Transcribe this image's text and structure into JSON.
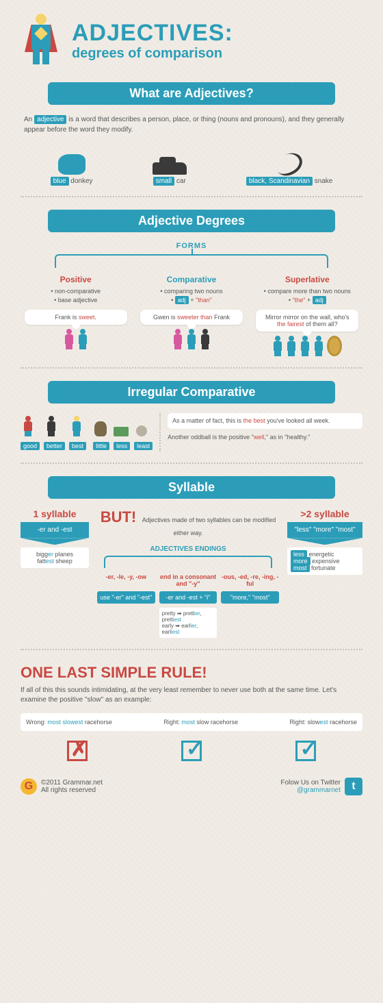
{
  "colors": {
    "teal": "#2b9db8",
    "red": "#c94842",
    "yellow": "#f5d56b",
    "bg": "#f0ece5",
    "text": "#555",
    "dark": "#3a3a3a",
    "pink": "#d858a0"
  },
  "header": {
    "title": "ADJECTIVES:",
    "subtitle": "degrees of comparison"
  },
  "s1": {
    "pill": "What are Adjectives?",
    "intro_a": "An ",
    "intro_hl": "adjective",
    "intro_b": " is a word that describes a person, place, or thing (nouns and pronouns), and they generally appear before the word they modify.",
    "ex1_hl": "blue",
    "ex1": "donkey",
    "ex2_hl": "small",
    "ex2": "car",
    "ex3_hl": "black, Scandinavian",
    "ex3": "snake"
  },
  "s2": {
    "pill": "Adjective Degrees",
    "forms": "FORMS",
    "pos": {
      "title": "Positive",
      "b1": "non-comparative",
      "b2": "base adjective",
      "bubble_a": "Frank is ",
      "bubble_b": "sweet",
      "bubble_c": "."
    },
    "comp": {
      "title": "Comparative",
      "b1": "comparing two nouns",
      "b2_a": "adj",
      "b2_b": " + ",
      "b2_c": "\"than\"",
      "bubble_a": "Gwen is ",
      "bubble_b": "sweeter than",
      "bubble_c": " Frank"
    },
    "sup": {
      "title": "Superlative",
      "b1": "compare more than two nouns",
      "b2_a": "\"the\"",
      "b2_b": " + ",
      "b2_c": "adj",
      "bubble_a": "Mirror mirror on the wall, who's ",
      "bubble_b": "the fairest",
      "bubble_c": " of them all?"
    }
  },
  "s3": {
    "pill": "Irregular Comparative",
    "g1": [
      "good",
      "better",
      "best"
    ],
    "g2": [
      "little",
      "less",
      "least"
    ],
    "note_bubble_a": "As a matter of fact, this is ",
    "note_bubble_b": "the best",
    "note_bubble_c": " you've looked all week.",
    "note2_a": "Another oddball is the positive \"",
    "note2_b": "well",
    "note2_c": ",\" as in \"healthy.\""
  },
  "s4": {
    "pill": "Syllable",
    "c1": {
      "title": "1 syllable",
      "arrow": "-er and -est",
      "ex_a": "bigg",
      "ex_b": "er",
      "ex_c": " planes",
      "ex_d": "fatt",
      "ex_e": "est",
      "ex_f": " sheep"
    },
    "mid": {
      "but": "BUT!",
      "but_text": "Adjectives made of two syllables can be modified either way.",
      "endings": "ADJECTIVES ENDINGS",
      "e1": {
        "head": "-er, -le, -y, -ow",
        "rule": "use \"-er\" and \"-est\""
      },
      "e2": {
        "head": "end in a consonant and \"-y\"",
        "rule": "-er and -est + \"i\"",
        "ex1_a": "pretty ➡ prett",
        "ex1_b": "ier",
        "ex1_c": ", prett",
        "ex1_d": "iest",
        "ex2_a": "early ➡ earl",
        "ex2_b": "ier",
        "ex2_c": ", earl",
        "ex2_d": "iest"
      },
      "e3": {
        "head": "-ous, -ed, -re, -ing, -ful",
        "rule": "\"more,\" \"most\""
      }
    },
    "c2": {
      "title": ">2 syllable",
      "arrow": "\"less\" \"more\" \"most\"",
      "ex1_a": "less",
      "ex1_b": " energetic",
      "ex2_a": "more",
      "ex2_b": " expensive",
      "ex3_a": "most",
      "ex3_b": " fortunate"
    }
  },
  "s5": {
    "title": "ONE LAST SIMPLE RULE!",
    "text": "If all of this this sounds intimidating, at the very least remember to never use both at the same time. Let's examine the positive \"slow\" as an example:",
    "r1_a": "Wrong: ",
    "r1_b": "most slowest",
    "r1_c": " racehorse",
    "r2_a": "Right: ",
    "r2_b": "most",
    "r2_c": " slow racehorse",
    "r3_a": "Right: slow",
    "r3_b": "est",
    "r3_c": " racehorse"
  },
  "footer": {
    "copy": "©2011 Grammar.net",
    "rights": "All rights reserved",
    "follow": "Folow Us on Twitter",
    "handle": "@grammarnet"
  }
}
